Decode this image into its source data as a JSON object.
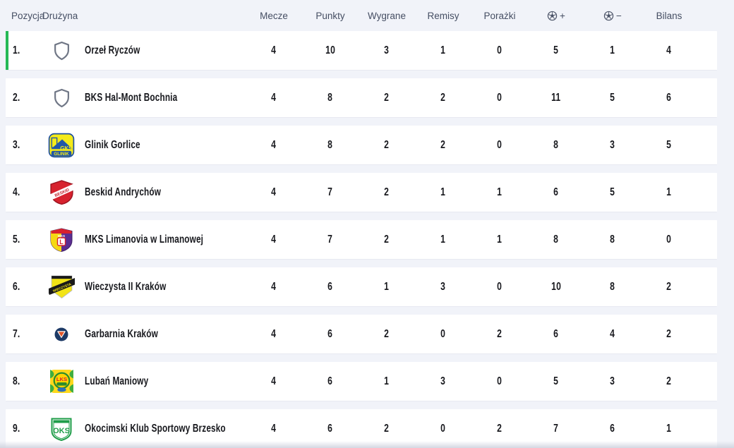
{
  "colors": {
    "accent_green": "#25b956",
    "page_background": "#f1f3f9",
    "row_background": "#ffffff",
    "header_text": "#454e63",
    "body_text": "#17181d"
  },
  "table": {
    "columns": [
      {
        "key": "pozycja",
        "label": "Pozycja"
      },
      {
        "key": "druzyna",
        "label": "Drużyna"
      },
      {
        "key": "mecze",
        "label": "Mecze"
      },
      {
        "key": "punkty",
        "label": "Punkty"
      },
      {
        "key": "wygrane",
        "label": "Wygrane"
      },
      {
        "key": "remisy",
        "label": "Remisy"
      },
      {
        "key": "porazki",
        "label": "Porażki"
      },
      {
        "key": "goals_for",
        "label": "+",
        "icon": "soccer-ball-icon"
      },
      {
        "key": "goals_against",
        "label": "−",
        "icon": "soccer-ball-icon"
      },
      {
        "key": "bilans",
        "label": "Bilans"
      }
    ],
    "rows": [
      {
        "position": "1.",
        "team": "Orzeł Ryczów",
        "logo": "shield-outline",
        "highlight": true,
        "mecze": 4,
        "punkty": 10,
        "wygrane": 3,
        "remisy": 1,
        "porazki": 0,
        "goals_for": 5,
        "goals_against": 1,
        "bilans": 4
      },
      {
        "position": "2.",
        "team": "BKS Hal-Mont Bochnia",
        "logo": "shield-outline",
        "highlight": false,
        "mecze": 4,
        "punkty": 8,
        "wygrane": 2,
        "remisy": 2,
        "porazki": 0,
        "goals_for": 11,
        "goals_against": 5,
        "bilans": 6
      },
      {
        "position": "3.",
        "team": "Glinik Gorlice",
        "logo": "glinik",
        "highlight": false,
        "mecze": 4,
        "punkty": 8,
        "wygrane": 2,
        "remisy": 2,
        "porazki": 0,
        "goals_for": 8,
        "goals_against": 3,
        "bilans": 5
      },
      {
        "position": "4.",
        "team": "Beskid Andrychów",
        "logo": "beskid",
        "highlight": false,
        "mecze": 4,
        "punkty": 7,
        "wygrane": 2,
        "remisy": 1,
        "porazki": 1,
        "goals_for": 6,
        "goals_against": 5,
        "bilans": 1
      },
      {
        "position": "5.",
        "team": "MKS Limanovia w Limanowej",
        "logo": "limanovia",
        "highlight": false,
        "mecze": 4,
        "punkty": 7,
        "wygrane": 2,
        "remisy": 1,
        "porazki": 1,
        "goals_for": 8,
        "goals_against": 8,
        "bilans": 0
      },
      {
        "position": "6.",
        "team": "Wieczysta II Kraków",
        "logo": "wieczysta",
        "highlight": false,
        "mecze": 4,
        "punkty": 6,
        "wygrane": 1,
        "remisy": 3,
        "porazki": 0,
        "goals_for": 10,
        "goals_against": 8,
        "bilans": 2
      },
      {
        "position": "7.",
        "team": "Garbarnia Kraków",
        "logo": "garbarnia",
        "highlight": false,
        "mecze": 4,
        "punkty": 6,
        "wygrane": 2,
        "remisy": 0,
        "porazki": 2,
        "goals_for": 6,
        "goals_against": 4,
        "bilans": 2
      },
      {
        "position": "8.",
        "team": "Lubań Maniowy",
        "logo": "luban",
        "highlight": false,
        "mecze": 4,
        "punkty": 6,
        "wygrane": 1,
        "remisy": 3,
        "porazki": 0,
        "goals_for": 5,
        "goals_against": 3,
        "bilans": 2
      },
      {
        "position": "9.",
        "team": "Okocimski Klub Sportowy Brzesko",
        "logo": "oks",
        "highlight": false,
        "mecze": 4,
        "punkty": 6,
        "wygrane": 2,
        "remisy": 0,
        "porazki": 2,
        "goals_for": 7,
        "goals_against": 6,
        "bilans": 1
      }
    ]
  }
}
